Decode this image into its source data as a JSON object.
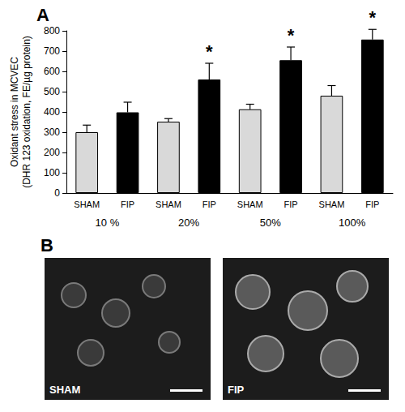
{
  "chart_data": {
    "type": "bar",
    "panel_label": "A",
    "y_label": [
      "Oxidant stress in MCVEC",
      "(DHR 123 oxidation, FE/µg protein)"
    ],
    "categories": [
      "SHAM",
      "FIP",
      "SHAM",
      "FIP",
      "SHAM",
      "FIP",
      "SHAM",
      "FIP"
    ],
    "groups": [
      "10 %",
      "20%",
      "50%",
      "100%"
    ],
    "values": [
      300,
      398,
      352,
      560,
      413,
      655,
      480,
      757
    ],
    "errors": [
      35,
      50,
      15,
      80,
      25,
      65,
      50,
      50
    ],
    "colors": [
      "#d9d9d9",
      "#000000",
      "#d9d9d9",
      "#000000",
      "#d9d9d9",
      "#000000",
      "#d9d9d9",
      "#000000"
    ],
    "annotations": [
      {
        "category_index": 3,
        "text": "*"
      },
      {
        "category_index": 5,
        "text": "*"
      },
      {
        "category_index": 7,
        "text": "*"
      }
    ],
    "ylim": [
      0,
      800
    ],
    "yticks": [
      0,
      100,
      200,
      300,
      400,
      500,
      600,
      700,
      800
    ],
    "grid": false
  },
  "panel_b": {
    "label": "B",
    "images": [
      "SHAM",
      "FIP"
    ]
  }
}
